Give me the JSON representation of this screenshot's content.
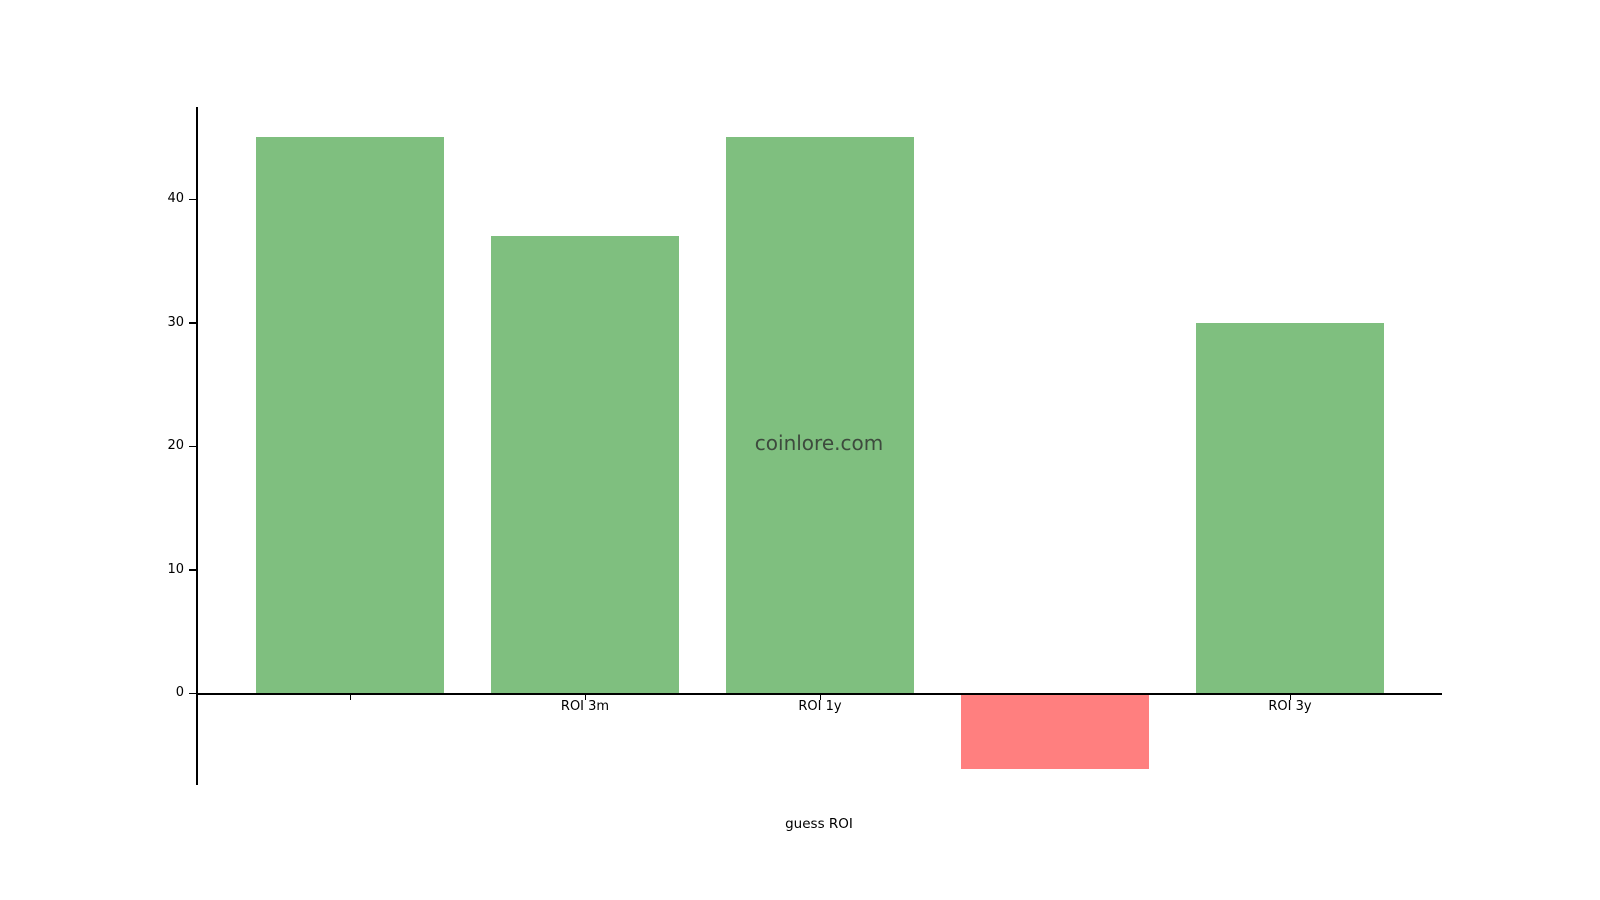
{
  "chart_data": {
    "type": "bar",
    "title": "",
    "xlabel": "guess ROI",
    "ylabel": "",
    "watermark": "coinlore.com",
    "categories": [
      "",
      "ROI 3m",
      "ROI 1y",
      "",
      "ROI 3y"
    ],
    "values": [
      45,
      37,
      45,
      -6,
      30
    ],
    "bar_colors": [
      "#7FBF7F",
      "#7FBF7F",
      "#7FBF7F",
      "#FF7F7F",
      "#7FBF7F"
    ],
    "yticks": [
      0,
      10,
      20,
      30,
      40
    ],
    "ylim": [
      -7.4,
      47.5
    ],
    "grid": false,
    "legend_position": "none",
    "layout_notes": "zero line spans plot width; left spine only; fourth bar tick hidden behind negative red bar; first and fourth categories have no visible label",
    "colors": {
      "positive_bar": "#7FBF7F",
      "negative_bar": "#FF7F7F",
      "axis": "#000000",
      "watermark_text": "#2D2D2D",
      "background": "#FFFFFF"
    }
  }
}
